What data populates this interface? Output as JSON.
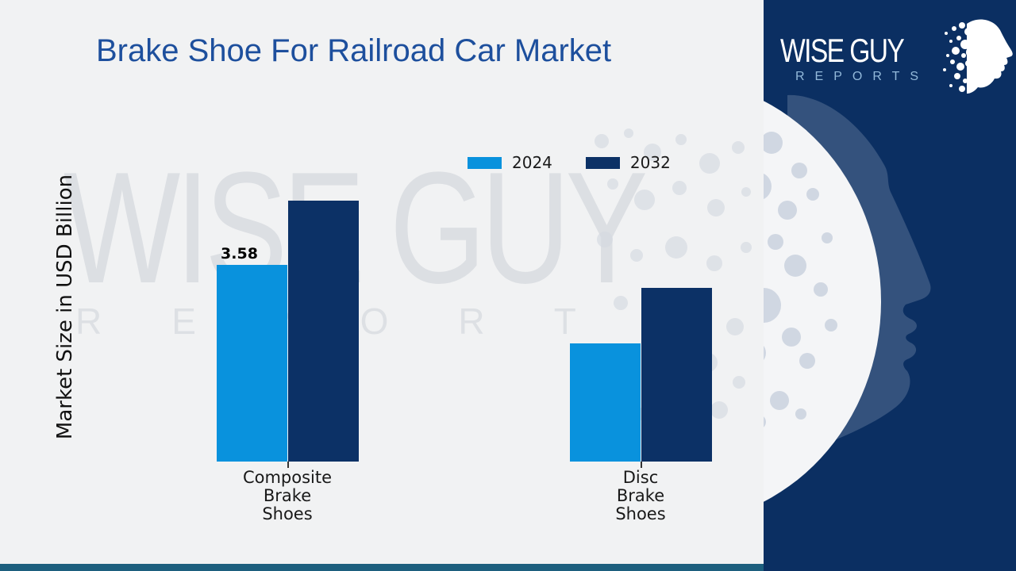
{
  "title": {
    "text": "Brake Shoe For Railroad Car Market",
    "color": "#1d4f9d"
  },
  "watermark": {
    "line1": "WISE GUY",
    "line2": "REPORTS"
  },
  "brand": {
    "wordmark": "WISE GUY",
    "wordmark_sub": "REPORTS",
    "panel_color": "#0b2f62",
    "face_icon": "face-profile-dots-icon"
  },
  "colors": {
    "background": "#f1f2f3",
    "bar_2024": "#0992dd",
    "bar_2032": "#0c3166",
    "bottom_bar": "#1d5f7e",
    "title": "#1d4f9d"
  },
  "chart_data": {
    "type": "bar",
    "title": "Brake Shoe For Railroad Car Market",
    "categories": [
      "Composite Brake Shoes",
      "Disc Brake Shoes"
    ],
    "category_label_lines": [
      [
        "Composite",
        "Brake",
        "Shoes"
      ],
      [
        "Disc",
        "Brake",
        "Shoes"
      ]
    ],
    "series": [
      {
        "name": "2024",
        "color": "#0992dd",
        "values": [
          3.58,
          2.15
        ]
      },
      {
        "name": "2032",
        "color": "#0c3166",
        "values": [
          4.75,
          3.16
        ]
      }
    ],
    "value_labels": [
      {
        "series_index": 0,
        "category_index": 0,
        "text": "3.58"
      }
    ],
    "xlabel": "",
    "ylabel": "Market Size in USD Billion",
    "ylim": [
      0,
      5.2
    ],
    "grid": false,
    "legend_position": "top-center"
  }
}
